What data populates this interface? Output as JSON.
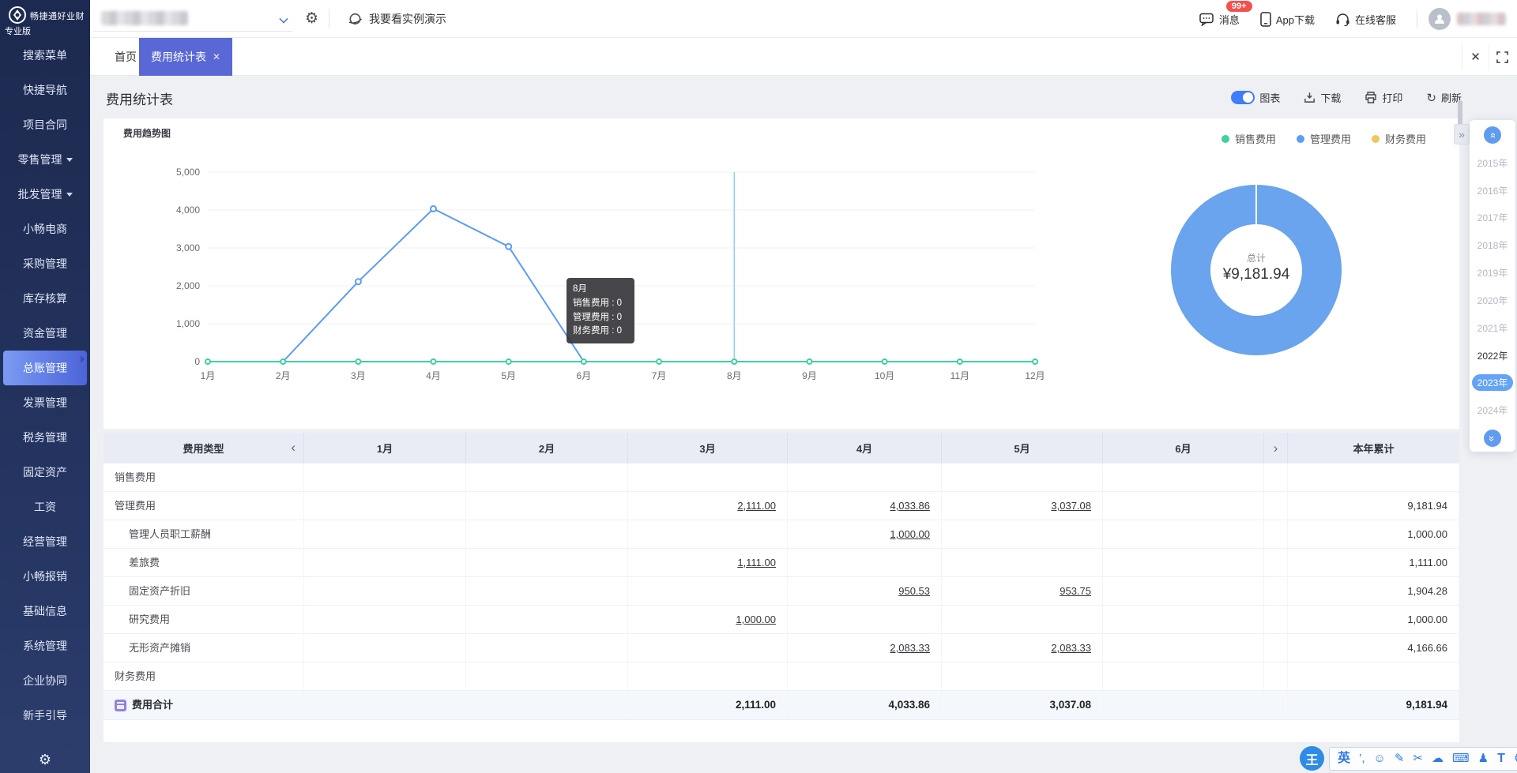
{
  "icons": {
    "gear": "⚙",
    "refresh": "↻",
    "close": "✕",
    "collapse_right": "»",
    "double_chevron": "»",
    "prev": "‹",
    "next": "›"
  },
  "topbar": {
    "brand_name": "畅捷通好业财",
    "brand_edition": "专业版",
    "demo_label": "我要看实例演示",
    "messages_label": "消息",
    "messages_badge": "99+",
    "app_download_label": "App下载",
    "online_service_label": "在线客服"
  },
  "tabs": {
    "home_label": "首页",
    "active_label": "费用统计表"
  },
  "sidebar": {
    "items": [
      {
        "label": "搜索菜单"
      },
      {
        "label": "快捷导航"
      },
      {
        "label": "项目合同"
      },
      {
        "label": "零售管理",
        "arrow": true
      },
      {
        "label": "批发管理",
        "arrow": true
      },
      {
        "label": "小畅电商"
      },
      {
        "label": "采购管理"
      },
      {
        "label": "库存核算"
      },
      {
        "label": "资金管理"
      },
      {
        "label": "总账管理",
        "active": true
      },
      {
        "label": "发票管理"
      },
      {
        "label": "税务管理"
      },
      {
        "label": "固定资产"
      },
      {
        "label": "工资"
      },
      {
        "label": "经营管理"
      },
      {
        "label": "小畅报销"
      },
      {
        "label": "基础信息"
      },
      {
        "label": "系统管理"
      },
      {
        "label": "企业协同"
      },
      {
        "label": "新手引导"
      }
    ]
  },
  "page": {
    "title": "费用统计表",
    "toolbar": {
      "chart_toggle_label": "图表",
      "download_label": "下载",
      "print_label": "打印",
      "refresh_label": "刷新"
    }
  },
  "chart_data": [
    {
      "type": "line",
      "title": "费用趋势图",
      "x": [
        "1月",
        "2月",
        "3月",
        "4月",
        "5月",
        "6月",
        "7月",
        "8月",
        "9月",
        "10月",
        "11月",
        "12月"
      ],
      "series": [
        {
          "name": "销售费用",
          "color": "#3fd0a0",
          "values": [
            0,
            0,
            0,
            0,
            0,
            0,
            0,
            0,
            0,
            0,
            0,
            0
          ]
        },
        {
          "name": "管理费用",
          "color": "#5b9cf8",
          "values": [
            0,
            0,
            2111,
            4033.86,
            3037.08,
            0,
            0,
            0,
            0,
            0,
            0,
            0
          ]
        },
        {
          "name": "财务费用",
          "color": "#f0c75a",
          "values": [
            0,
            0,
            0,
            0,
            0,
            0,
            0,
            0,
            0,
            0,
            0,
            0
          ]
        }
      ],
      "ylim": [
        0,
        5000
      ],
      "yticks": [
        0,
        1000,
        2000,
        3000,
        4000,
        5000
      ],
      "ytick_labels": [
        "0",
        "1,000",
        "2,000",
        "3,000",
        "4,000",
        "5,000"
      ],
      "grid": true,
      "legend_position": "top-right",
      "crosshair_x": "8月"
    },
    {
      "type": "pie",
      "center_label": "总计",
      "center_value": "¥9,181.94",
      "slices": [
        {
          "name": "管理费用",
          "value": 9181.94,
          "color": "#6aa3ee"
        }
      ]
    }
  ],
  "chart_tooltip": {
    "title": "8月",
    "rows": [
      {
        "name": "销售费用",
        "value": "0"
      },
      {
        "name": "管理费用",
        "value": "0"
      },
      {
        "name": "财务费用",
        "value": "0"
      }
    ]
  },
  "year_panel": {
    "years": [
      "2015年",
      "2016年",
      "2017年",
      "2018年",
      "2019年",
      "2020年",
      "2021年",
      "2022年",
      "2023年",
      "2024年"
    ],
    "selected": "2023年",
    "emphasized": "2022年"
  },
  "table": {
    "columns": [
      "费用类型",
      "1月",
      "2月",
      "3月",
      "4月",
      "5月",
      "6月",
      "本年累计"
    ],
    "rows": [
      {
        "label": "销售费用",
        "indent": 0,
        "values": [
          "",
          "",
          "",
          "",
          "",
          "",
          ""
        ],
        "links": []
      },
      {
        "label": "管理费用",
        "indent": 0,
        "values": [
          "",
          "",
          "2,111.00",
          "4,033.86",
          "3,037.08",
          "",
          "9,181.94"
        ],
        "links": [
          2,
          3,
          4
        ]
      },
      {
        "label": "管理人员职工薪酬",
        "indent": 1,
        "values": [
          "",
          "",
          "",
          "1,000.00",
          "",
          "",
          "1,000.00"
        ],
        "links": [
          3
        ]
      },
      {
        "label": "差旅费",
        "indent": 1,
        "values": [
          "",
          "",
          "1,111.00",
          "",
          "",
          "",
          "1,111.00"
        ],
        "links": [
          2
        ]
      },
      {
        "label": "固定资产折旧",
        "indent": 1,
        "values": [
          "",
          "",
          "",
          "950.53",
          "953.75",
          "",
          "1,904.28"
        ],
        "links": [
          3,
          4
        ]
      },
      {
        "label": "研究费用",
        "indent": 1,
        "values": [
          "",
          "",
          "1,000.00",
          "",
          "",
          "",
          "1,000.00"
        ],
        "links": [
          2
        ]
      },
      {
        "label": "无形资产摊销",
        "indent": 1,
        "values": [
          "",
          "",
          "",
          "2,083.33",
          "2,083.33",
          "",
          "4,166.66"
        ],
        "links": [
          3,
          4
        ]
      },
      {
        "label": "财务费用",
        "indent": 0,
        "values": [
          "",
          "",
          "",
          "",
          "",
          "",
          ""
        ],
        "links": []
      }
    ],
    "total_row": {
      "label": "费用合计",
      "values": [
        "",
        "",
        "2,111.00",
        "4,033.86",
        "3,037.08",
        "",
        "9,181.94"
      ]
    }
  },
  "ime": {
    "logo": "王",
    "icons": [
      {
        "name": "english-mode",
        "glyph": "英",
        "bold": true
      },
      {
        "name": "punctuation-mode",
        "glyph": "’,"
      },
      {
        "name": "emoji-icon",
        "glyph": "☺"
      },
      {
        "name": "pencil-icon",
        "glyph": "✎"
      },
      {
        "name": "scissors-icon",
        "glyph": "✂"
      },
      {
        "name": "cloud-icon",
        "glyph": "☁"
      },
      {
        "name": "keyboard-icon",
        "glyph": "⌨"
      },
      {
        "name": "person-icon",
        "glyph": "♟"
      },
      {
        "name": "shirt-icon",
        "glyph": "T",
        "bold": true
      },
      {
        "name": "settings-icon",
        "glyph": "⚙"
      }
    ]
  }
}
